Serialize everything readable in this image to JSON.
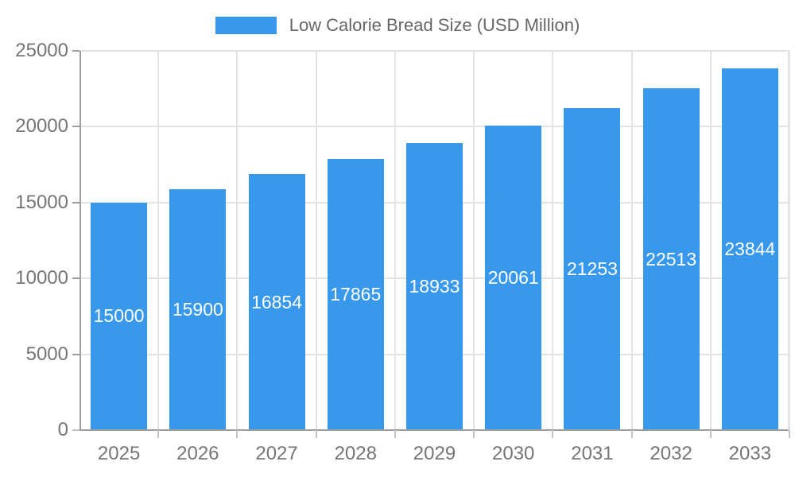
{
  "legend": {
    "label": "Low Calorie Bread Size (USD Million)"
  },
  "chart_data": {
    "type": "bar",
    "title": "Low Calorie Bread Size (USD Million)",
    "categories": [
      "2025",
      "2026",
      "2027",
      "2028",
      "2029",
      "2030",
      "2031",
      "2032",
      "2033"
    ],
    "values": [
      15000,
      15900,
      16854,
      17865,
      18933,
      20061,
      21253,
      22513,
      23844
    ],
    "xlabel": "",
    "ylabel": "",
    "ylim": [
      0,
      25000
    ],
    "yticks": [
      0,
      5000,
      10000,
      15000,
      20000,
      25000
    ],
    "grid": true,
    "legend_position": "top-center",
    "value_label_position": "inside-center"
  },
  "colors": {
    "bar": "#3899EC",
    "value_label": "#FFFFFF",
    "axis_line": "#9E9E9E",
    "gridline": "#E3E3E3",
    "tick": "#C4C4C4",
    "axis_text": "#757575",
    "legend_text": "#666666",
    "background": "#FFFFFF"
  }
}
